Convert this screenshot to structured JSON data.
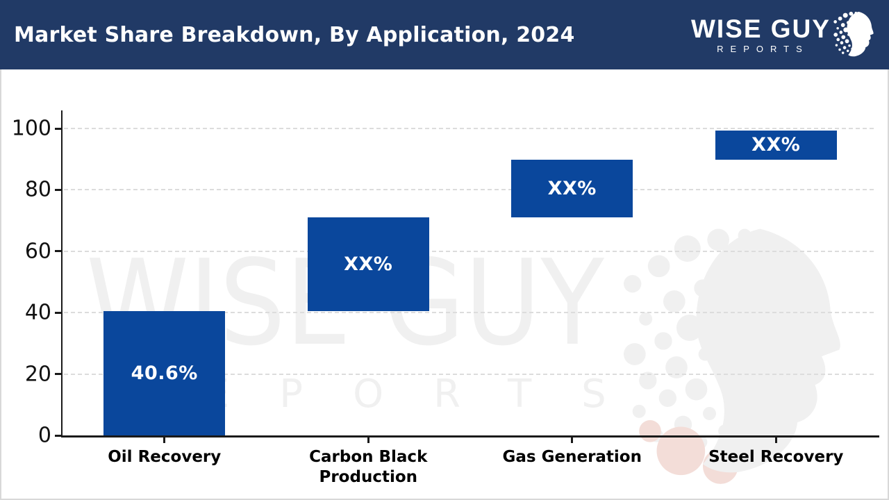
{
  "header": {
    "title": "Market Share Breakdown, By Application, 2024",
    "logo": {
      "line1": "WISE GUY",
      "line2": "REPORTS"
    }
  },
  "watermark": {
    "line1": "WISE GUY",
    "line2": "REPORTS"
  },
  "colors": {
    "header_bg": "#213a66",
    "bar": "#0a479c",
    "bar_label": "#ffffff",
    "grid": "#dcdcdc",
    "axis": "#1a1a1a",
    "watermark": "#f0f0f0",
    "watermark_accent": "#f3ddd8"
  },
  "chart_data": {
    "type": "bar",
    "subtype": "waterfall",
    "title": "Market Share Breakdown, By Application, 2024",
    "categories": [
      "Oil Recovery",
      "Carbon Black Production",
      "Gas Generation",
      "Steel Recovery"
    ],
    "segments": [
      {
        "category": "Oil Recovery",
        "start": 0,
        "end": 40.6,
        "label": "40.6%"
      },
      {
        "category": "Carbon Black Production",
        "start": 40.6,
        "end": 71.1,
        "label": "XX%"
      },
      {
        "category": "Gas Generation",
        "start": 71.1,
        "end": 89.9,
        "label": "XX%"
      },
      {
        "category": "Steel Recovery",
        "start": 89.9,
        "end": 99.3,
        "label": "XX%"
      }
    ],
    "xlabel": "",
    "ylabel": "",
    "ylim": [
      0,
      105
    ],
    "yticks": [
      0,
      20,
      40,
      60,
      80,
      100
    ],
    "grid": "dashed-horizontal",
    "legend": "none",
    "bar_value_labels_inside": true
  }
}
